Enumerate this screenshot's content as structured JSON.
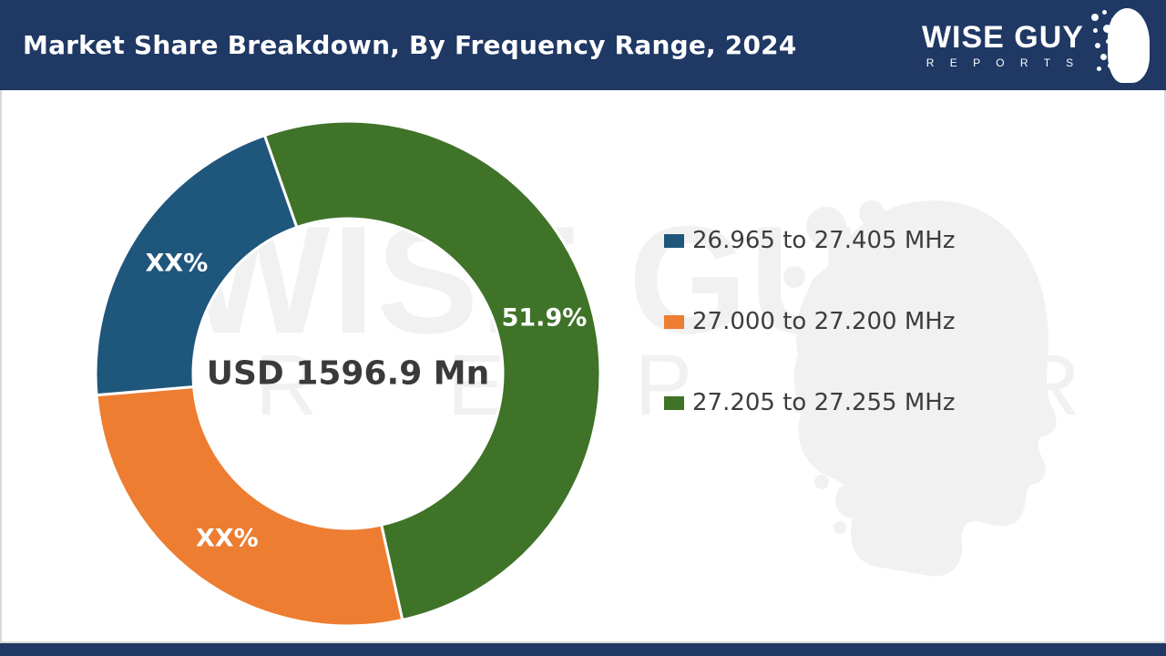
{
  "header": {
    "title": "Market Share Breakdown, By Frequency Range, 2024",
    "bg_color": "#1f3864",
    "logo": {
      "line1": "WISE GUY",
      "line2": "R E P O R T S"
    }
  },
  "watermark": {
    "line1": "WISE GUY",
    "line2": "R E P O R T S",
    "color": "#f1f1f2"
  },
  "chart_data": {
    "type": "pie",
    "donut": true,
    "title": "Market Share Breakdown, By Frequency Range, 2024",
    "center_label": "USD 1596.9 Mn",
    "start_angle_clockwise_from_12": -19.3,
    "segments": [
      {
        "name": "27.205 to 27.255 MHz",
        "value_pct": 51.9,
        "label": "51.9%",
        "color": "#3f7328",
        "label_color": "#ffffff"
      },
      {
        "name": "27.000 to 27.200 MHz",
        "value_pct": 27.1,
        "label": "XX%",
        "color": "#ed7d31",
        "label_color": "#ffffff"
      },
      {
        "name": "26.965 to 27.405 MHz",
        "value_pct": 21.0,
        "label": "XX%",
        "color": "#1f567c",
        "label_color": "#ffffff"
      }
    ],
    "legend": [
      {
        "label": "26.965 to 27.405 MHz",
        "color": "#1f567c"
      },
      {
        "label": "27.000 to 27.200 MHz",
        "color": "#ed7d31"
      },
      {
        "label": "27.205 to 27.255 MHz",
        "color": "#3f7328"
      }
    ],
    "legend_position": "right",
    "note": "Orange and blue slice percentages are masked as XX% in the source; value_pct for those slices is estimated from arc geometry."
  },
  "footer": {
    "bg_color": "#1f3864"
  }
}
